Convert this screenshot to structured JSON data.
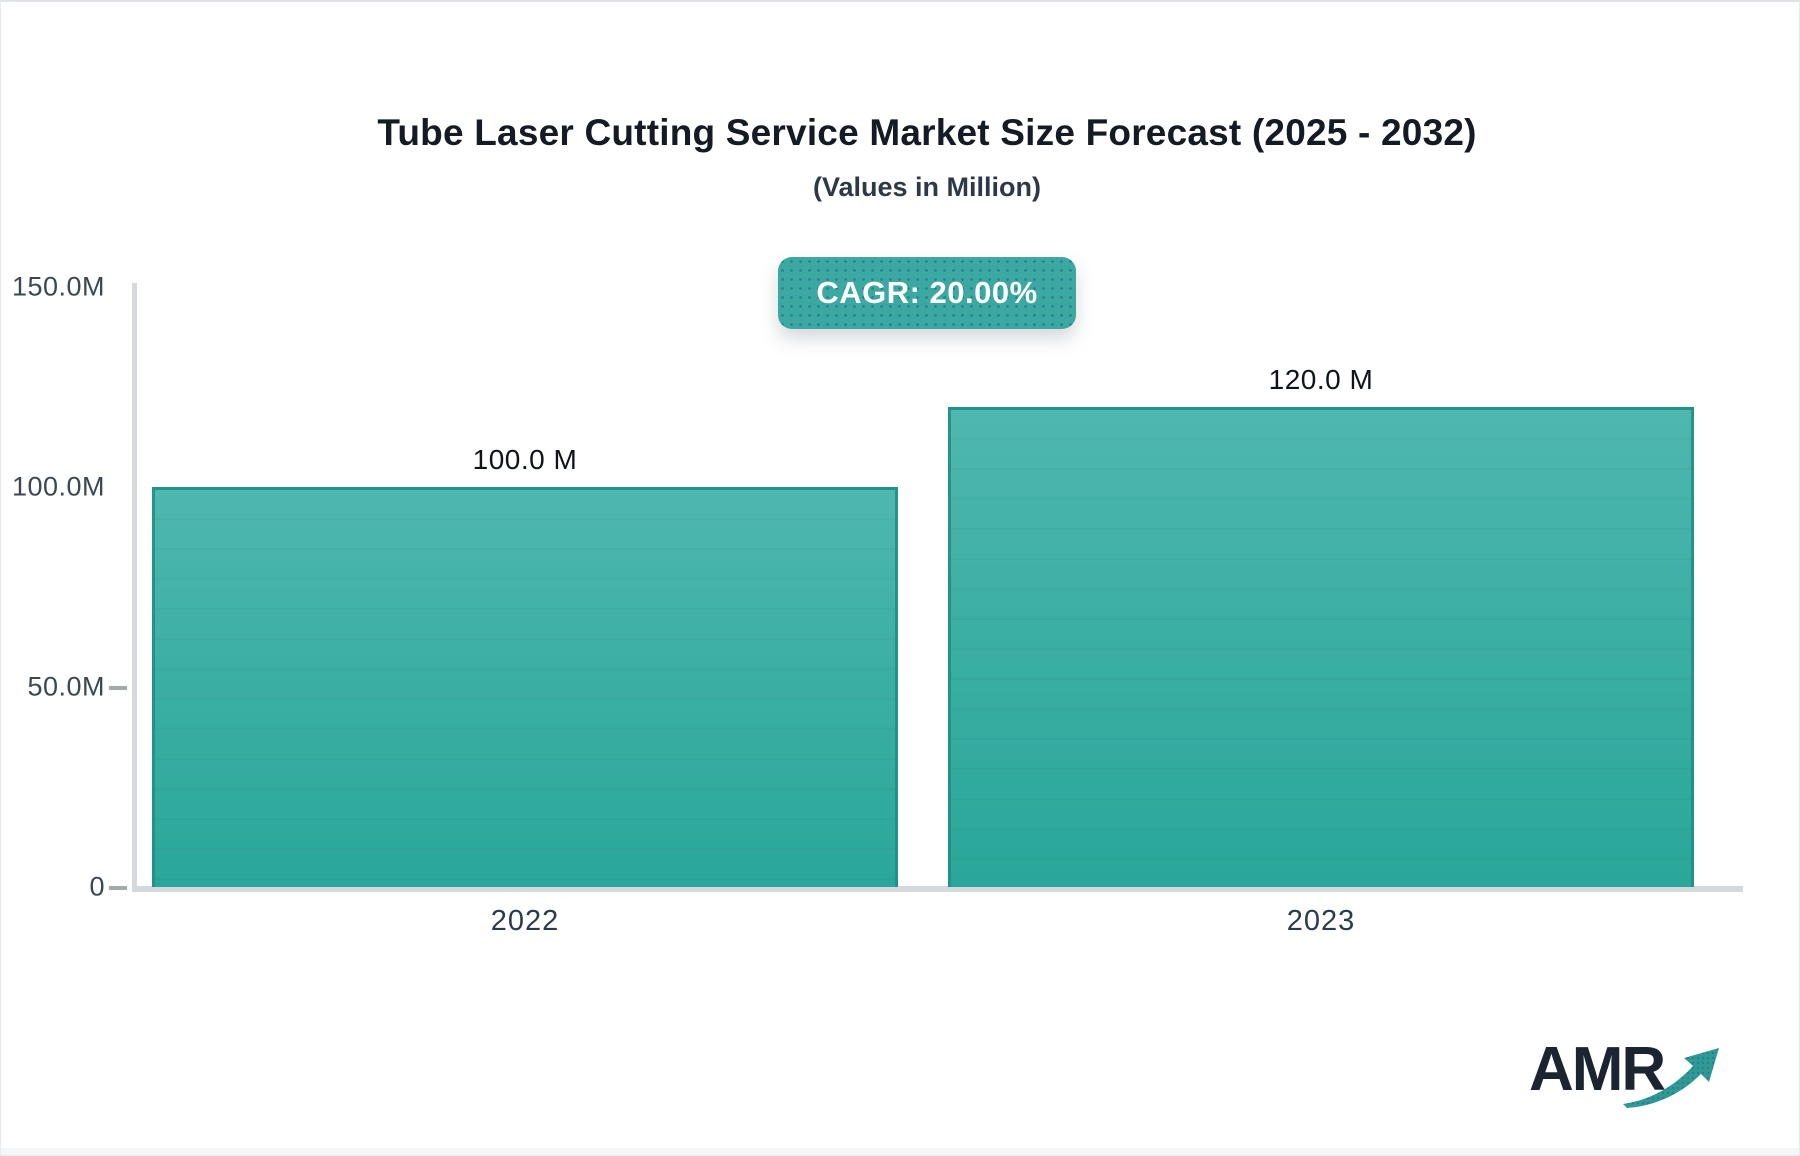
{
  "header": {
    "title": "Tube Laser Cutting Service Market Size Forecast (2025 - 2032)",
    "subtitle": "(Values in Million)",
    "cagr_label": "CAGR: 20.00%"
  },
  "chart_data": {
    "type": "bar",
    "title": "Tube Laser Cutting Service Market Size Forecast (2025 - 2032)",
    "subtitle": "(Values in Million)",
    "unit": "Million",
    "cagr_percent": 20.0,
    "categories": [
      "2022",
      "2023"
    ],
    "values": [
      100.0,
      120.0
    ],
    "value_labels": [
      "100.0 M",
      "120.0 M"
    ],
    "ylim": [
      0,
      150
    ],
    "ytick_labels": [
      "150.0M",
      "100.0M",
      "50.0M",
      "0"
    ],
    "grid": false,
    "legend": false
  },
  "logo": {
    "text": "AMR",
    "icon": "trending-up-arrow-icon"
  },
  "colors": {
    "bar_gradient_top": "#4fb7ae",
    "bar_gradient_bottom": "#2aa79a",
    "bar_border": "#1e8e85",
    "badge_background": "#3ba8a1",
    "badge_text": "#ffffff",
    "axis_line": "#d5d8dd",
    "title_text": "#141b24",
    "axis_label_text": "#3c4754",
    "logo_navy": "#1b2531",
    "logo_arrow_teal": "#2f9a92"
  }
}
